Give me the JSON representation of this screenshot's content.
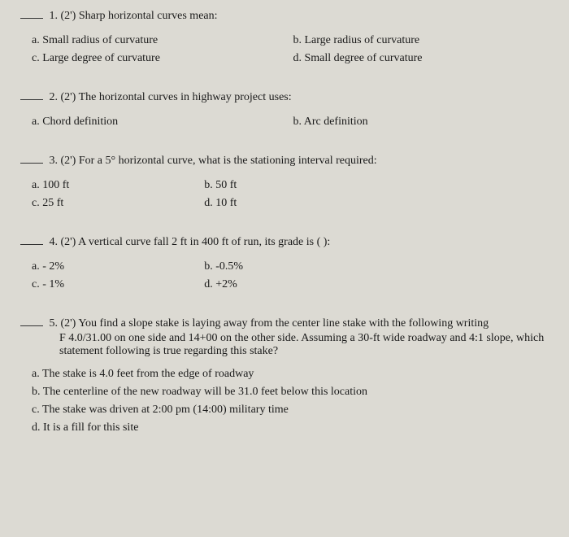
{
  "q1": {
    "text": "1. (2') Sharp horizontal curves mean:",
    "a": "a. Small radius of curvature",
    "b": "b. Large radius of curvature",
    "c": "c.  Large degree of curvature",
    "d": "d. Small degree of curvature"
  },
  "q2": {
    "text": "2. (2') The horizontal curves in highway project uses:",
    "a": "a. Chord definition",
    "b": "b.  Arc definition"
  },
  "q3": {
    "text": "3. (2') For a 5° horizontal curve, what is the stationing interval required:",
    "a": "a. 100 ft",
    "b": "b. 50 ft",
    "c": "c.  25 ft",
    "d": "d. 10 ft"
  },
  "q4": {
    "text": "4. (2') A vertical curve fall 2 ft in 400 ft of run, its grade is (    ):",
    "a": "a. - 2%",
    "b": "b.  -0.5%",
    "c": "c.  - 1%",
    "d": "d.  +2%"
  },
  "q5": {
    "text": "5. (2') You find a slope stake is laying away from the center line stake with the following writing",
    "body": "F 4.0/31.00 on one side and 14+00 on the other side.  Assuming a 30-ft wide roadway and 4:1 slope, which statement following is true regarding this stake?",
    "a": "a.  The stake is 4.0 feet from the edge of roadway",
    "b": "b.  The centerline of the new roadway will be 31.0 feet below this location",
    "c": "c.  The stake was driven at 2:00 pm (14:00) military time",
    "d": "d.  It is a fill for this site"
  }
}
